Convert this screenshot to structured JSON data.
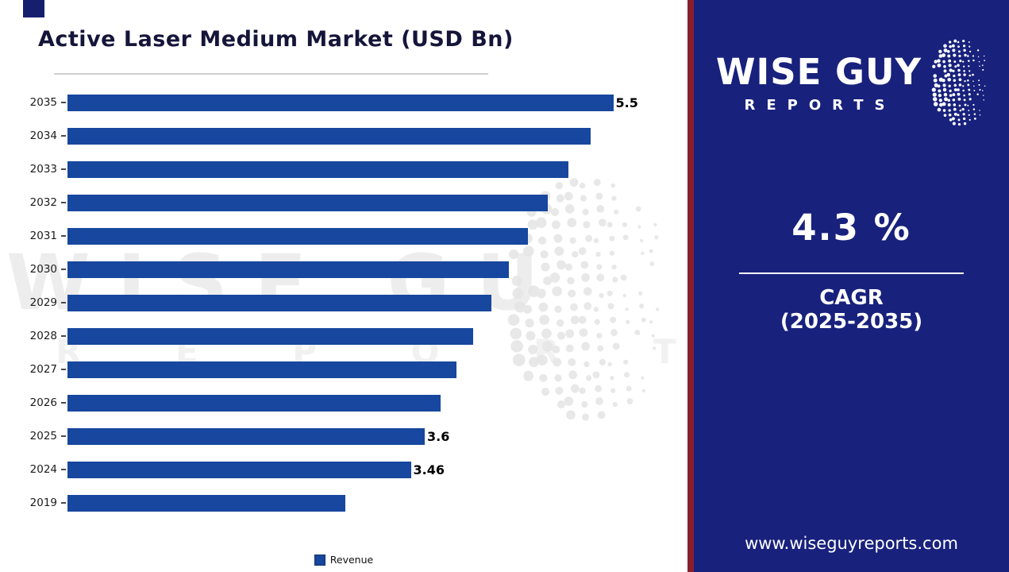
{
  "accent": {
    "bar_color": "#17479E",
    "panel_color": "#18217C",
    "divider_color": "#8B1E2D",
    "corner_color": "#161F6E",
    "watermark_color": "#e6e6e6",
    "logo_dot_color": "#ffffff"
  },
  "chart_data": {
    "type": "bar",
    "orientation": "horizontal",
    "title": "Active Laser Medium Market (USD Bn)",
    "categories": [
      "2035",
      "2034",
      "2033",
      "2032",
      "2031",
      "2030",
      "2029",
      "2028",
      "2027",
      "2026",
      "2025",
      "2024",
      "2019"
    ],
    "values": [
      5.5,
      5.27,
      5.05,
      4.84,
      4.64,
      4.45,
      4.27,
      4.09,
      3.92,
      3.76,
      3.6,
      3.46,
      2.8
    ],
    "value_labels": {
      "2035": "5.5",
      "2025": "3.6",
      "2024": "3.46"
    },
    "xlim": [
      0,
      6.2
    ],
    "xlabel": "",
    "ylabel": "",
    "grid": false,
    "legend_position": "bottom-center",
    "legend": [
      {
        "label": "Revenue",
        "color": "#17479E"
      }
    ]
  },
  "watermark": {
    "line1": "WISE GU",
    "line2": "R E P O R T"
  },
  "sidebar": {
    "logo": {
      "line1": "WISE GUY",
      "line2": "REPORTS"
    },
    "cagr_value": "4.3 %",
    "cagr_label_line1": "CAGR",
    "cagr_label_line2": "(2025-2035)",
    "website": "www.wiseguyreports.com"
  }
}
